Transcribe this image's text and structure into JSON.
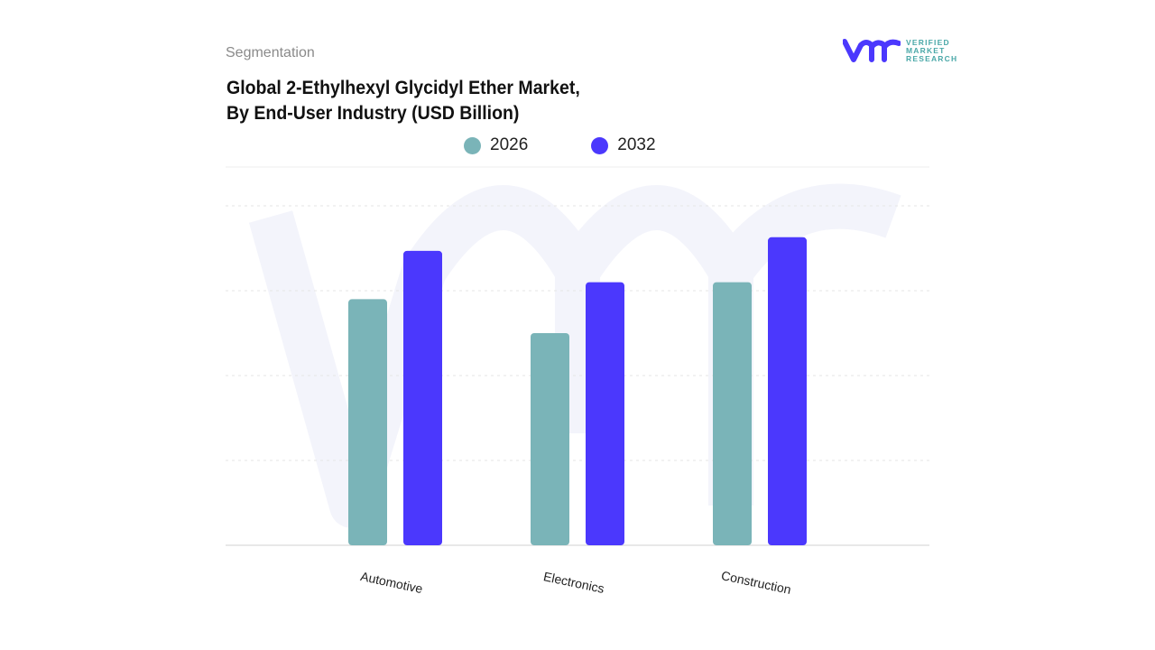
{
  "header": {
    "segment_label": "Segmentation",
    "title_line1": "Global 2-Ethylhexyl Glycidyl Ether Market,",
    "title_line2": "By End-User Industry (USD Billion)"
  },
  "logo": {
    "text_lines": [
      "VERIFIED",
      "MARKET",
      "RESEARCH"
    ],
    "mark": "vmr"
  },
  "chart_data": {
    "type": "bar",
    "title": "Global 2-Ethylhexyl Glycidyl Ether Market, By End-User Industry (USD Billion)",
    "categories": [
      "Automotive",
      "Electronics",
      "Construction"
    ],
    "series": [
      {
        "name": "2026",
        "color": "#7ab4b8",
        "values": [
          2.9,
          2.5,
          3.1
        ]
      },
      {
        "name": "2032",
        "color": "#4b38fd",
        "values": [
          3.47,
          3.1,
          3.63
        ]
      }
    ],
    "ylim": [
      0,
      4
    ],
    "grid": true,
    "legend": "top-center",
    "xlabel": "",
    "ylabel": ""
  }
}
